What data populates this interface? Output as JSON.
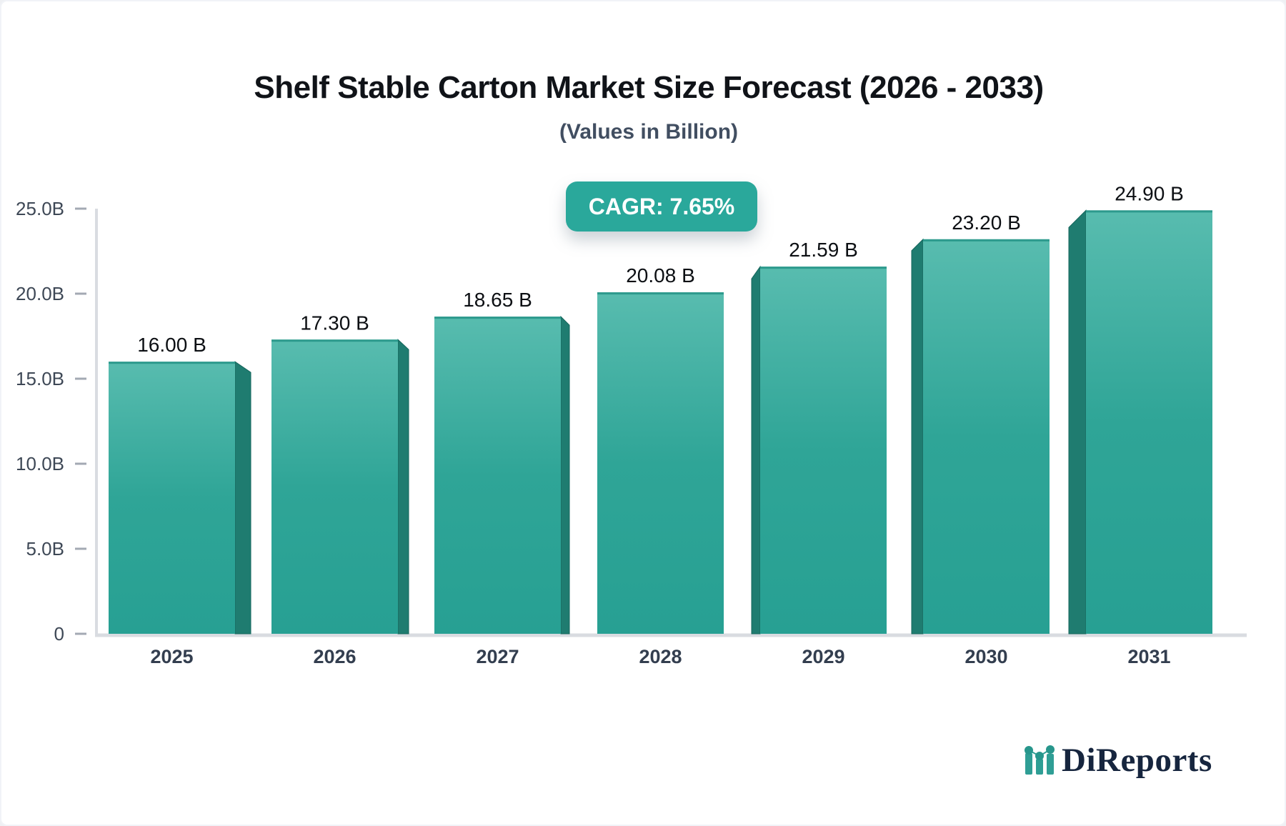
{
  "header": {
    "title": "Shelf Stable Carton Market Size Forecast (2026 - 2033)",
    "subtitle": "(Values in Billion)"
  },
  "cagr_badge": {
    "label": "CAGR: 7.65%",
    "bg_color": "#2aa89b",
    "text_color": "#ffffff"
  },
  "chart_data": {
    "type": "bar",
    "title": "Shelf Stable Carton Market Size Forecast (2026 - 2033)",
    "subtitle": "(Values in Billion)",
    "categories": [
      "2025",
      "2026",
      "2027",
      "2028",
      "2029",
      "2030",
      "2031"
    ],
    "values": [
      16.0,
      17.3,
      18.65,
      20.08,
      21.59,
      23.2,
      24.9
    ],
    "value_labels": [
      "16.00 B",
      "17.30 B",
      "18.65 B",
      "20.08 B",
      "21.59 B",
      "23.20 B",
      "24.90 B"
    ],
    "y_ticks": [
      {
        "value": 0,
        "label": "0"
      },
      {
        "value": 5,
        "label": "5.0B"
      },
      {
        "value": 10,
        "label": "10.0B"
      },
      {
        "value": 15,
        "label": "15.0B"
      },
      {
        "value": 20,
        "label": "20.0B"
      },
      {
        "value": 25,
        "label": "25.0B"
      }
    ],
    "ylim": [
      0,
      25
    ],
    "xlabel": "",
    "ylabel": "",
    "grid": false,
    "legend": false,
    "unit": "Billion",
    "colors": {
      "bar_top": "#58bcaf",
      "bar_mid": "#2fa597",
      "bar_bottom": "#27a093",
      "bar_top_edge": "#2d9a8d",
      "bar_side": "#1f7c70",
      "bar_side_edge": "#15665c",
      "axis_line": "#d9dce1",
      "tick_mark": "#a3a9b3",
      "tick_label": "#3e4856",
      "category_label": "#333e4f",
      "value_label": "#0c0f13"
    }
  },
  "logo": {
    "text": "DiReports",
    "icon": "mini-bar-chart-icon",
    "text_color": "#16253e",
    "icon_color": "#2f9e95",
    "icon_dot_color": "#27968c"
  }
}
